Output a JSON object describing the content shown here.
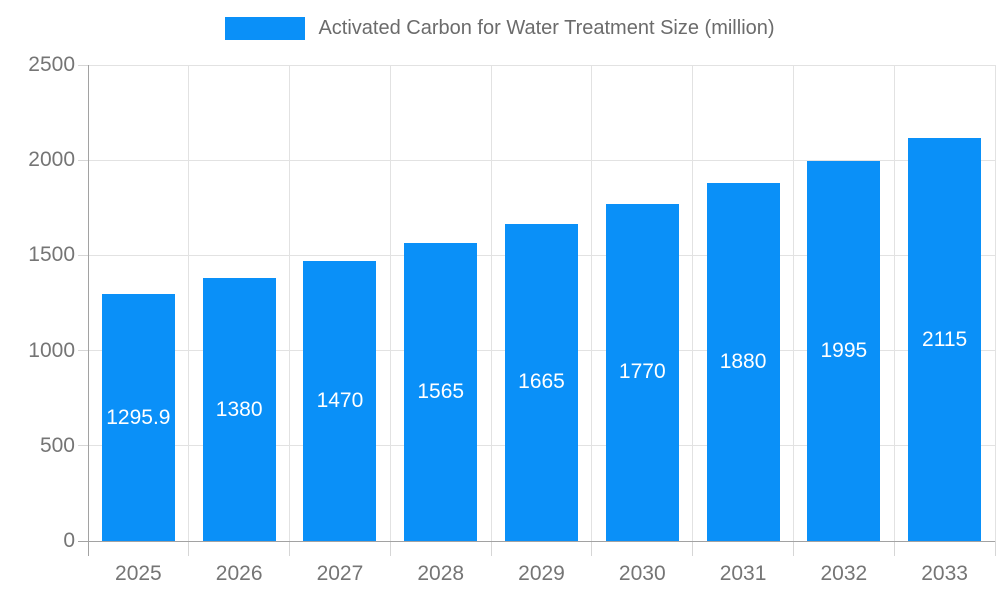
{
  "legend": {
    "label": "Activated Carbon for Water Treatment Size (million)"
  },
  "colors": {
    "bar": "#0A90F8",
    "grid": "#E2E2E2",
    "tick": "#D6D6D6",
    "axis": "#A2A2A2",
    "tick_label": "#757575",
    "legend_text": "#6B6B6B",
    "bar_label": "#FFFFFF"
  },
  "chart_data": {
    "type": "bar",
    "title": "",
    "legend": "Activated Carbon for Water Treatment Size (million)",
    "categories": [
      "2025",
      "2026",
      "2027",
      "2028",
      "2029",
      "2030",
      "2031",
      "2032",
      "2033"
    ],
    "values": [
      1295.9,
      1380,
      1470,
      1565,
      1665,
      1770,
      1880,
      1995,
      2115
    ],
    "xlabel": "",
    "ylabel": "",
    "ylim": [
      0,
      2500
    ],
    "yticks": [
      0,
      500,
      1000,
      1500,
      2000,
      2500
    ],
    "grid": true,
    "legend_position": "top",
    "value_labels_inside_bars": true
  }
}
